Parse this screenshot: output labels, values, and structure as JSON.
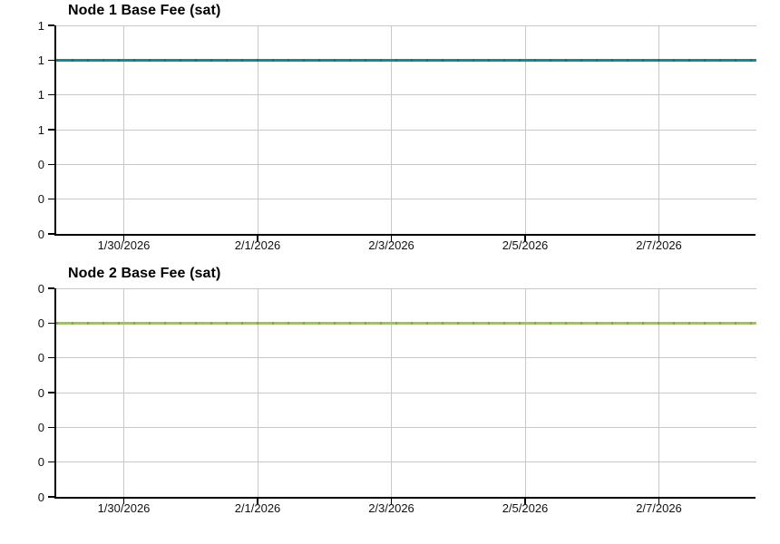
{
  "page": {
    "background": "#ffffff"
  },
  "chart_data": [
    {
      "type": "line",
      "title": "Node 1 Base Fee (sat)",
      "x_tick_labels": [
        "1/30/2026",
        "2/1/2026",
        "2/3/2026",
        "2/5/2026",
        "2/7/2026"
      ],
      "y_tick_labels_top_to_bottom": [
        "1",
        "1",
        "1",
        "1",
        "0",
        "0",
        "0"
      ],
      "ylabel": "",
      "xlabel": "",
      "ylim": [
        0,
        1.2
      ],
      "y_tick_step": 0.2,
      "y_tick_format": "rounded integer",
      "x_range": [
        "1/29/2026",
        "2/8/2026"
      ],
      "grid": true,
      "legend": "none",
      "series": [
        {
          "name": "Node 1 base fee",
          "constant_value": 1,
          "unit": "sat",
          "color": "#0E8C96"
        }
      ]
    },
    {
      "type": "line",
      "title": "Node 2 Base Fee (sat)",
      "x_tick_labels": [
        "1/30/2026",
        "2/1/2026",
        "2/3/2026",
        "2/5/2026",
        "2/7/2026"
      ],
      "y_tick_labels_top_to_bottom": [
        "0",
        "0",
        "0",
        "0",
        "0",
        "0",
        "0"
      ],
      "ylabel": "",
      "xlabel": "",
      "ylim": [
        0,
        0.12
      ],
      "y_tick_step": 0.02,
      "y_tick_format": "rounded integer",
      "x_range": [
        "1/29/2026",
        "2/8/2026"
      ],
      "grid": true,
      "legend": "none",
      "series": [
        {
          "name": "Node 2 base fee",
          "constant_value": 0.1,
          "unit": "sat",
          "color": "#9BCD32"
        }
      ]
    }
  ],
  "colors": {
    "background": "#ffffff",
    "axis": "#000000",
    "gridline": "#c8c8c8",
    "tick_label": "#111111",
    "title": "#000000",
    "series_1": "#0E8C96",
    "series_2": "#9BCD32"
  }
}
